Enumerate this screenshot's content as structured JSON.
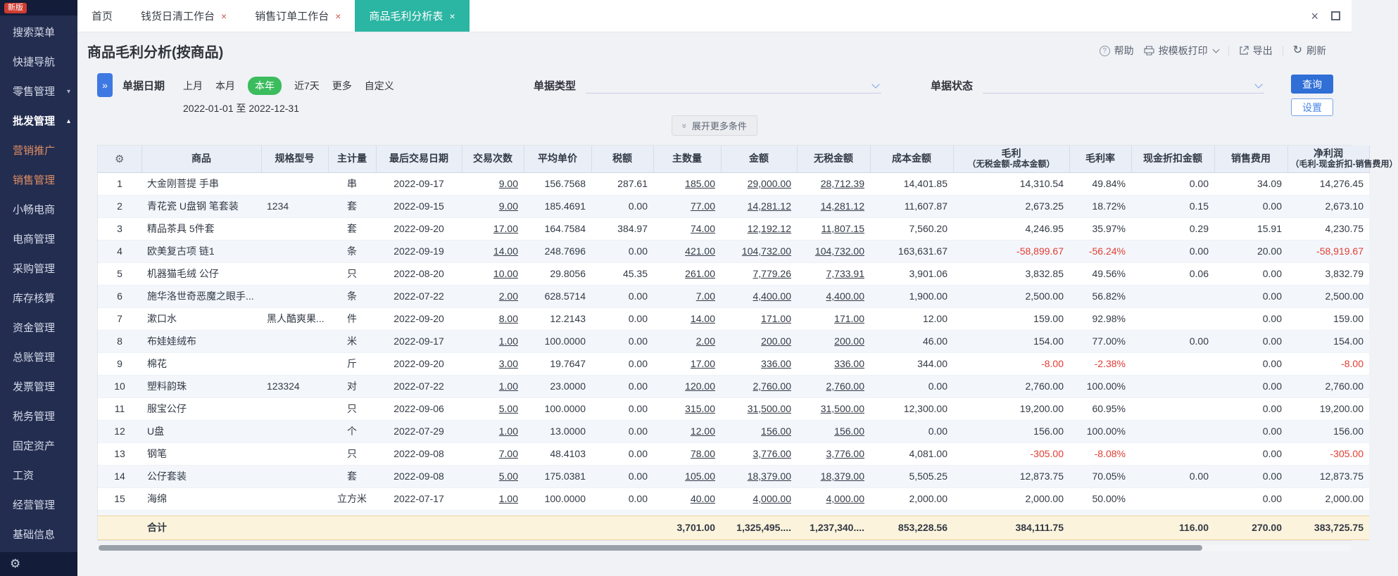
{
  "icons": {
    "gear": "⚙",
    "close": "×",
    "refresh": "↻",
    "collapse": "»",
    "expand_more": "»",
    "help": "?"
  },
  "colors": {
    "sidebar_bg": "#232d50",
    "sidebar_sub_item": "#e08e63",
    "active_tab_teal": "#2bb5a3",
    "primary_blue": "#2f6fd6",
    "pill_green": "#3bbc5d",
    "negative_red": "#e23c31",
    "total_row_bg": "#fcf3dc"
  },
  "sidebar": {
    "badge": "新版",
    "items": [
      {
        "id": "search-menu",
        "label": "搜索菜单",
        "type": "item"
      },
      {
        "id": "quick-nav",
        "label": "快捷导航",
        "type": "item"
      },
      {
        "id": "retail-mgmt",
        "label": "零售管理",
        "type": "group",
        "arrow": "down"
      },
      {
        "id": "wholesale-mgmt",
        "label": "批发管理",
        "type": "group-active",
        "arrow": "up"
      },
      {
        "id": "marketing-promo",
        "label": "营销推广",
        "type": "sub"
      },
      {
        "id": "sales-mgmt",
        "label": "销售管理",
        "type": "sub"
      },
      {
        "id": "xiaochang-ecommerce",
        "label": "小畅电商",
        "type": "item"
      },
      {
        "id": "ecommerce-mgmt",
        "label": "电商管理",
        "type": "item"
      },
      {
        "id": "purchase-mgmt",
        "label": "采购管理",
        "type": "item"
      },
      {
        "id": "inventory-accounting",
        "label": "库存核算",
        "type": "item"
      },
      {
        "id": "funds-mgmt",
        "label": "资金管理",
        "type": "item"
      },
      {
        "id": "general-ledger",
        "label": "总账管理",
        "type": "item"
      },
      {
        "id": "invoice-mgmt",
        "label": "发票管理",
        "type": "item"
      },
      {
        "id": "tax-mgmt",
        "label": "税务管理",
        "type": "item"
      },
      {
        "id": "fixed-assets",
        "label": "固定资产",
        "type": "item"
      },
      {
        "id": "payroll",
        "label": "工资",
        "type": "item"
      },
      {
        "id": "operation-mgmt",
        "label": "经营管理",
        "type": "item"
      },
      {
        "id": "base-info",
        "label": "基础信息",
        "type": "item"
      }
    ]
  },
  "tabs": {
    "items": [
      {
        "id": "home",
        "label": "首页",
        "closable": false,
        "active": false
      },
      {
        "id": "cash-goods-daily-worktable",
        "label": "钱货日清工作台",
        "closable": true,
        "active": false
      },
      {
        "id": "sales-order-worktable",
        "label": "销售订单工作台",
        "closable": true,
        "active": false
      },
      {
        "id": "product-gross-profit-analysis",
        "label": "商品毛利分析表",
        "closable": true,
        "active": true
      }
    ]
  },
  "header": {
    "title": "商品毛利分析(按商品)",
    "help": "帮助",
    "print": "按模板打印",
    "export": "导出",
    "refresh": "刷新"
  },
  "filters": {
    "date_label": "单据日期",
    "quick": [
      {
        "id": "last-month",
        "label": "上月",
        "active": false
      },
      {
        "id": "this-month",
        "label": "本月",
        "active": false
      },
      {
        "id": "this-year",
        "label": "本年",
        "active": true
      },
      {
        "id": "last-7-days",
        "label": "近7天",
        "active": false
      },
      {
        "id": "more",
        "label": "更多",
        "active": false
      },
      {
        "id": "custom",
        "label": "自定义",
        "active": false
      }
    ],
    "date_range": "2022-01-01 至 2022-12-31",
    "type_label": "单据类型",
    "status_label": "单据状态",
    "query": "查询",
    "settings": "设置",
    "expand": "展开更多条件"
  },
  "table": {
    "columns": [
      {
        "key": "num",
        "label": "",
        "icon": "gear",
        "width": 62,
        "align": "center"
      },
      {
        "key": "name",
        "label": "商品",
        "width": 170,
        "align": "left"
      },
      {
        "key": "spec",
        "label": "规格型号",
        "width": 95,
        "align": "left"
      },
      {
        "key": "unit",
        "label": "主计量",
        "width": 68,
        "align": "center"
      },
      {
        "key": "date",
        "label": "最后交易日期",
        "width": 122,
        "align": "center"
      },
      {
        "key": "trades",
        "label": "交易次数",
        "width": 88,
        "align": "right",
        "link": true
      },
      {
        "key": "price",
        "label": "平均单价",
        "width": 96,
        "align": "right"
      },
      {
        "key": "tax",
        "label": "税额",
        "width": 88,
        "align": "right"
      },
      {
        "key": "qty",
        "label": "主数量",
        "width": 96,
        "align": "right",
        "link": true
      },
      {
        "key": "amount",
        "label": "金额",
        "width": 108,
        "align": "right",
        "link": true
      },
      {
        "key": "net",
        "label": "无税金额",
        "width": 104,
        "align": "right",
        "link": true
      },
      {
        "key": "cost",
        "label": "成本金额",
        "width": 118,
        "align": "right"
      },
      {
        "key": "profit",
        "label": "毛利",
        "sub": "（无税金额-成本金额）",
        "width": 165,
        "align": "right"
      },
      {
        "key": "margin",
        "label": "毛利率",
        "width": 88,
        "align": "right"
      },
      {
        "key": "discount",
        "label": "现金折扣金额",
        "width": 118,
        "align": "right"
      },
      {
        "key": "expense",
        "label": "销售费用",
        "width": 104,
        "align": "right"
      },
      {
        "key": "netprofit",
        "label": "净利润",
        "sub": "（毛利-现金折扣-销售费用）",
        "width": 116,
        "align": "right"
      }
    ],
    "rows": [
      {
        "num": "1",
        "name": "大金刚菩提 手串",
        "spec": "",
        "unit": "串",
        "date": "2022-09-17",
        "trades": "9.00",
        "price": "156.7568",
        "tax": "287.61",
        "qty": "185.00",
        "amount": "29,000.00",
        "net": "28,712.39",
        "cost": "14,401.85",
        "profit": "14,310.54",
        "margin": "49.84%",
        "discount": "0.00",
        "expense": "34.09",
        "netprofit": "14,276.45"
      },
      {
        "num": "2",
        "name": "青花瓷 U盘钢 笔套装",
        "spec": "1234",
        "unit": "套",
        "date": "2022-09-15",
        "trades": "9.00",
        "price": "185.4691",
        "tax": "0.00",
        "qty": "77.00",
        "amount": "14,281.12",
        "net": "14,281.12",
        "cost": "11,607.87",
        "profit": "2,673.25",
        "margin": "18.72%",
        "discount": "0.15",
        "expense": "0.00",
        "netprofit": "2,673.10"
      },
      {
        "num": "3",
        "name": "精品茶具 5件套",
        "spec": "",
        "unit": "套",
        "date": "2022-09-20",
        "trades": "17.00",
        "price": "164.7584",
        "tax": "384.97",
        "qty": "74.00",
        "amount": "12,192.12",
        "net": "11,807.15",
        "cost": "7,560.20",
        "profit": "4,246.95",
        "margin": "35.97%",
        "discount": "0.29",
        "expense": "15.91",
        "netprofit": "4,230.75"
      },
      {
        "num": "4",
        "name": "欧美复古项 链1",
        "spec": "",
        "unit": "条",
        "date": "2022-09-19",
        "trades": "14.00",
        "price": "248.7696",
        "tax": "0.00",
        "qty": "421.00",
        "amount": "104,732.00",
        "net": "104,732.00",
        "cost": "163,631.67",
        "profit": "-58,899.67",
        "margin": "-56.24%",
        "discount": "0.00",
        "expense": "20.00",
        "netprofit": "-58,919.67"
      },
      {
        "num": "5",
        "name": "机器猫毛绒 公仔",
        "spec": "",
        "unit": "只",
        "date": "2022-08-20",
        "trades": "10.00",
        "price": "29.8056",
        "tax": "45.35",
        "qty": "261.00",
        "amount": "7,779.26",
        "net": "7,733.91",
        "cost": "3,901.06",
        "profit": "3,832.85",
        "margin": "49.56%",
        "discount": "0.06",
        "expense": "0.00",
        "netprofit": "3,832.79"
      },
      {
        "num": "6",
        "name": "施华洛世奇恶魔之眼手...",
        "spec": "",
        "unit": "条",
        "date": "2022-07-22",
        "trades": "2.00",
        "price": "628.5714",
        "tax": "0.00",
        "qty": "7.00",
        "amount": "4,400.00",
        "net": "4,400.00",
        "cost": "1,900.00",
        "profit": "2,500.00",
        "margin": "56.82%",
        "discount": "",
        "expense": "0.00",
        "netprofit": "2,500.00"
      },
      {
        "num": "7",
        "name": "漱口水",
        "spec": "黑人酷爽果...",
        "unit": "件",
        "date": "2022-09-20",
        "trades": "8.00",
        "price": "12.2143",
        "tax": "0.00",
        "qty": "14.00",
        "amount": "171.00",
        "net": "171.00",
        "cost": "12.00",
        "profit": "159.00",
        "margin": "92.98%",
        "discount": "",
        "expense": "0.00",
        "netprofit": "159.00"
      },
      {
        "num": "8",
        "name": "布娃娃绒布",
        "spec": "",
        "unit": "米",
        "date": "2022-09-17",
        "trades": "1.00",
        "price": "100.0000",
        "tax": "0.00",
        "qty": "2.00",
        "amount": "200.00",
        "net": "200.00",
        "cost": "46.00",
        "profit": "154.00",
        "margin": "77.00%",
        "discount": "0.00",
        "expense": "0.00",
        "netprofit": "154.00"
      },
      {
        "num": "9",
        "name": "棉花",
        "spec": "",
        "unit": "斤",
        "date": "2022-09-20",
        "trades": "3.00",
        "price": "19.7647",
        "tax": "0.00",
        "qty": "17.00",
        "amount": "336.00",
        "net": "336.00",
        "cost": "344.00",
        "profit": "-8.00",
        "margin": "-2.38%",
        "discount": "",
        "expense": "0.00",
        "netprofit": "-8.00"
      },
      {
        "num": "10",
        "name": "塑料韵珠",
        "spec": "123324",
        "unit": "对",
        "date": "2022-07-22",
        "trades": "1.00",
        "price": "23.0000",
        "tax": "0.00",
        "qty": "120.00",
        "amount": "2,760.00",
        "net": "2,760.00",
        "cost": "0.00",
        "profit": "2,760.00",
        "margin": "100.00%",
        "discount": "",
        "expense": "0.00",
        "netprofit": "2,760.00"
      },
      {
        "num": "11",
        "name": "服宝公仔",
        "spec": "",
        "unit": "只",
        "date": "2022-09-06",
        "trades": "5.00",
        "price": "100.0000",
        "tax": "0.00",
        "qty": "315.00",
        "amount": "31,500.00",
        "net": "31,500.00",
        "cost": "12,300.00",
        "profit": "19,200.00",
        "margin": "60.95%",
        "discount": "",
        "expense": "0.00",
        "netprofit": "19,200.00"
      },
      {
        "num": "12",
        "name": "U盘",
        "spec": "",
        "unit": "个",
        "date": "2022-07-29",
        "trades": "1.00",
        "price": "13.0000",
        "tax": "0.00",
        "qty": "12.00",
        "amount": "156.00",
        "net": "156.00",
        "cost": "0.00",
        "profit": "156.00",
        "margin": "100.00%",
        "discount": "",
        "expense": "0.00",
        "netprofit": "156.00"
      },
      {
        "num": "13",
        "name": "钢笔",
        "spec": "",
        "unit": "只",
        "date": "2022-09-08",
        "trades": "7.00",
        "price": "48.4103",
        "tax": "0.00",
        "qty": "78.00",
        "amount": "3,776.00",
        "net": "3,776.00",
        "cost": "4,081.00",
        "profit": "-305.00",
        "margin": "-8.08%",
        "discount": "",
        "expense": "0.00",
        "netprofit": "-305.00"
      },
      {
        "num": "14",
        "name": "公仔套装",
        "spec": "",
        "unit": "套",
        "date": "2022-09-08",
        "trades": "5.00",
        "price": "175.0381",
        "tax": "0.00",
        "qty": "105.00",
        "amount": "18,379.00",
        "net": "18,379.00",
        "cost": "5,505.25",
        "profit": "12,873.75",
        "margin": "70.05%",
        "discount": "0.00",
        "expense": "0.00",
        "netprofit": "12,873.75"
      },
      {
        "num": "15",
        "name": "海绵",
        "spec": "",
        "unit": "立方米",
        "date": "2022-07-17",
        "trades": "1.00",
        "price": "100.0000",
        "tax": "0.00",
        "qty": "40.00",
        "amount": "4,000.00",
        "net": "4,000.00",
        "cost": "2,000.00",
        "profit": "2,000.00",
        "margin": "50.00%",
        "discount": "",
        "expense": "0.00",
        "netprofit": "2,000.00"
      }
    ],
    "total": {
      "name": "合计",
      "qty": "3,701.00",
      "amount": "1,325,495....",
      "net": "1,237,340....",
      "cost": "853,228.56",
      "profit": "384,111.75",
      "discount": "116.00",
      "expense": "270.00",
      "netprofit": "383,725.75"
    }
  }
}
